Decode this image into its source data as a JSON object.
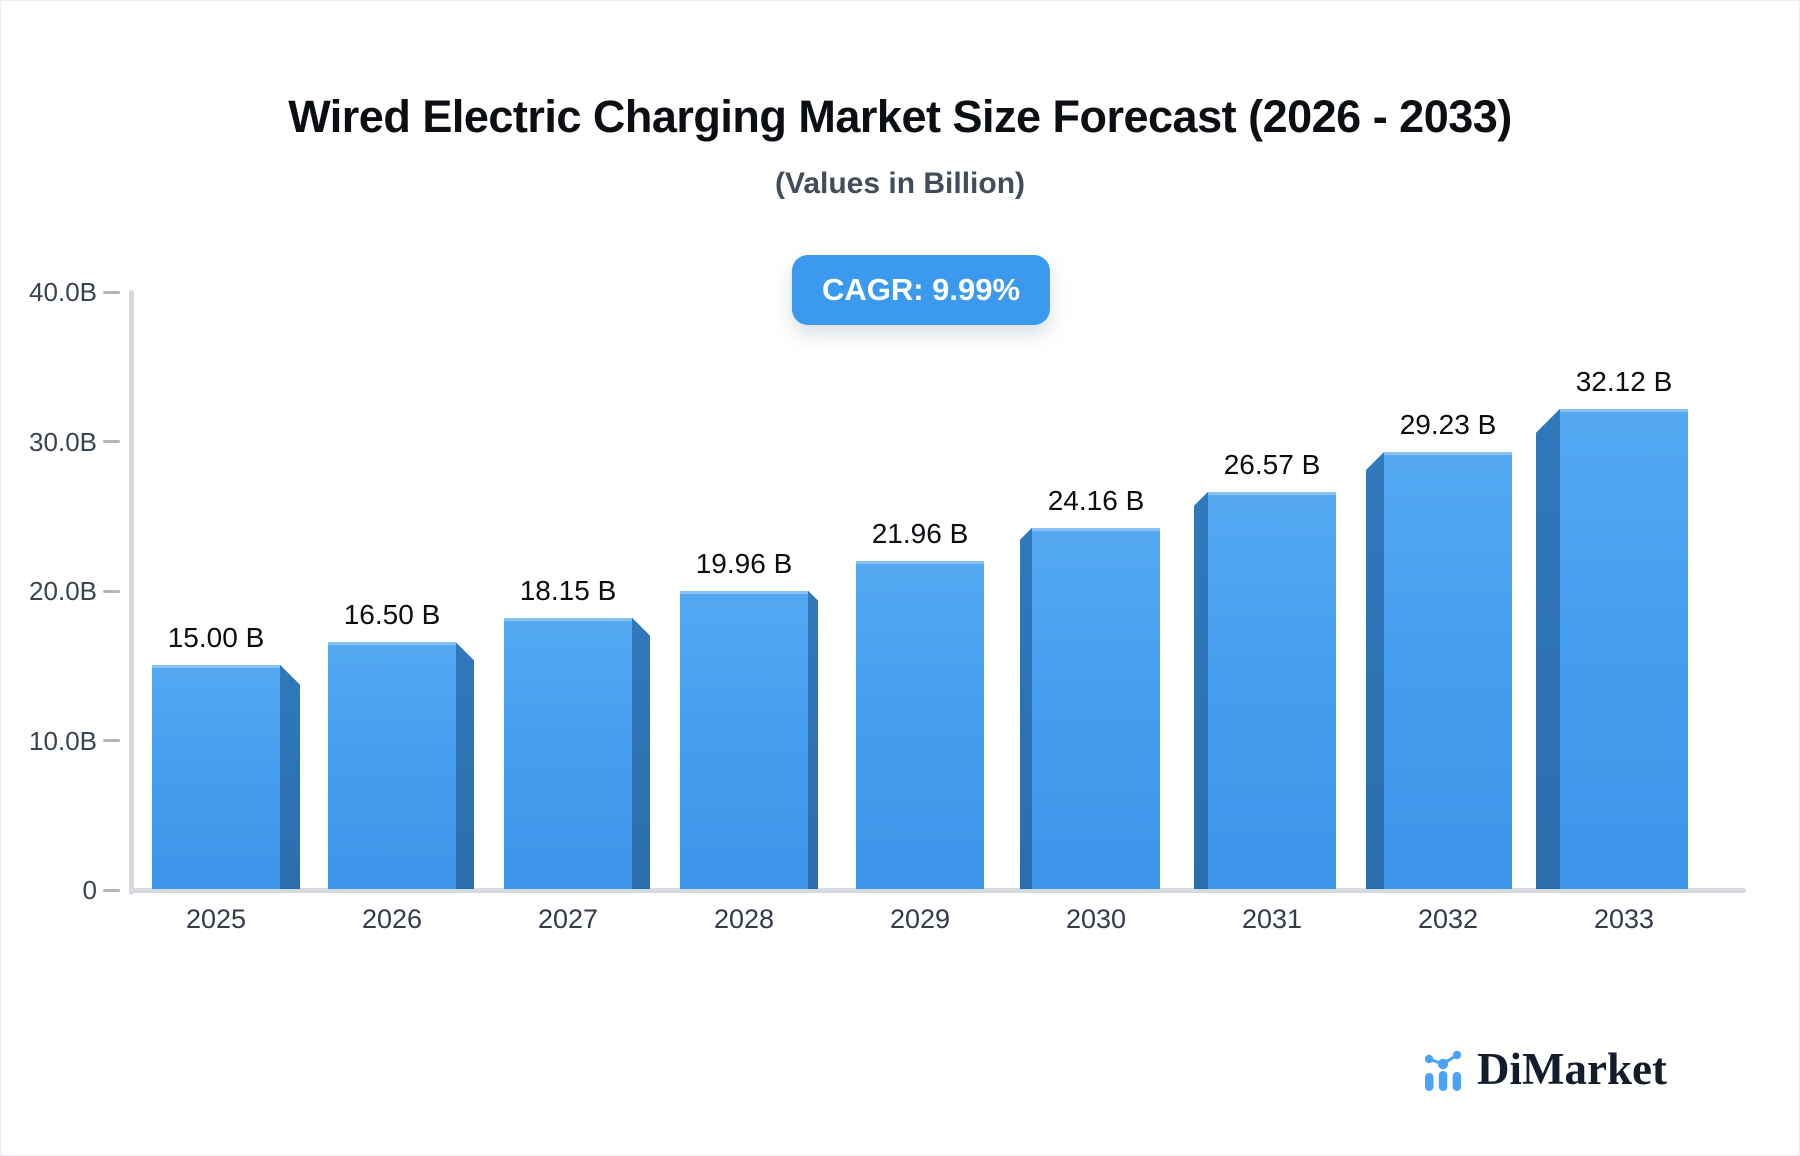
{
  "header": {
    "title": "Wired Electric Charging Market Size Forecast (2026 - 2033)",
    "subtitle": "(Values in Billion)"
  },
  "badge": {
    "label": "CAGR: 9.99%",
    "bg_color": "#3B99EE",
    "text_color": "#FFFFFF"
  },
  "chart_data": {
    "type": "bar",
    "title": "Wired Electric Charging Market Size Forecast (2026 - 2033)",
    "subtitle": "(Values in Billion)",
    "categories": [
      "2025",
      "2026",
      "2027",
      "2028",
      "2029",
      "2030",
      "2031",
      "2032",
      "2033"
    ],
    "values": [
      15.0,
      16.5,
      18.15,
      19.96,
      21.96,
      24.16,
      26.57,
      29.23,
      32.12
    ],
    "bar_labels": [
      "15.00 B",
      "16.50 B",
      "18.15 B",
      "19.96 B",
      "21.96 B",
      "24.16 B",
      "26.57 B",
      "29.23 B",
      "32.12 B"
    ],
    "xlabel": "",
    "ylabel": "",
    "ylim": [
      0,
      40
    ],
    "y_ticks": [
      0,
      10,
      20,
      30,
      40
    ],
    "y_tick_labels": [
      "0",
      "10.0B",
      "20.0B",
      "30.0B",
      "40.0B"
    ],
    "grid": false,
    "legend": false,
    "style": "3d-perspective-bars",
    "bar_color_top": "#55A9F2",
    "bar_color_bottom": "#3D95EA",
    "bar_side_color": "#2E76B8",
    "axis_color": "#D6DADE"
  },
  "logo": {
    "text": "DiMarket",
    "icon": "mini-bar-line-chart-icon",
    "text_color": "#131D2C",
    "icon_color": "#4AA3F5"
  }
}
